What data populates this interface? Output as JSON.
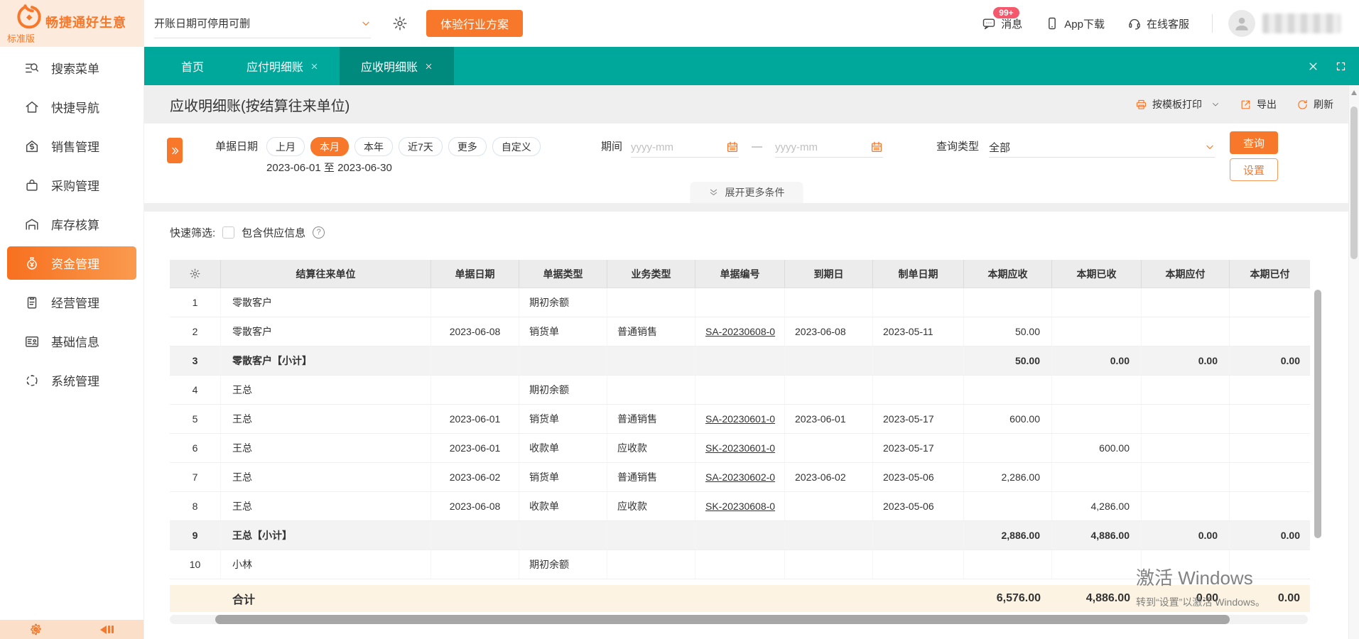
{
  "brand": {
    "name": "畅捷通好生意",
    "edition": "标准版"
  },
  "topbar": {
    "account_set": "开账日期可停用可删",
    "cta": "体验行业方案",
    "messages": "消息",
    "messages_badge": "99+",
    "app_download": "App下载",
    "online_service": "在线客服"
  },
  "tabs": [
    {
      "label": "首页"
    },
    {
      "label": "应付明细账"
    },
    {
      "label": "应收明细账"
    }
  ],
  "sidebar": {
    "items": [
      {
        "label": "搜索菜单"
      },
      {
        "label": "快捷导航"
      },
      {
        "label": "销售管理"
      },
      {
        "label": "采购管理"
      },
      {
        "label": "库存核算"
      },
      {
        "label": "资金管理",
        "active": true
      },
      {
        "label": "经营管理"
      },
      {
        "label": "基础信息"
      },
      {
        "label": "系统管理"
      }
    ]
  },
  "page": {
    "title": "应收明细账(按结算往来单位)",
    "print": "按模板打印",
    "export": "导出",
    "refresh": "刷新"
  },
  "filters": {
    "doc_date_label": "单据日期",
    "pills": [
      "上月",
      "本月",
      "本年",
      "近7天",
      "更多",
      "自定义"
    ],
    "active_pill": "本月",
    "date_range": "2023-06-01 至 2023-06-30",
    "period_label": "期间",
    "period_placeholder": "yyyy-mm",
    "separator": "—",
    "query_type_label": "查询类型",
    "query_type_value": "全部",
    "search": "查询",
    "settings": "设置",
    "expand_more": "展开更多条件"
  },
  "quick_filter": {
    "label": "快速筛选:",
    "option": "包含供应信息",
    "help": "?"
  },
  "table": {
    "headers": [
      "",
      "结算往来单位",
      "单据日期",
      "单据类型",
      "业务类型",
      "单据编号",
      "到期日",
      "制单日期",
      "本期应收",
      "本期已收",
      "本期应付",
      "本期已付"
    ],
    "rows": [
      {
        "num": "1",
        "name": "零散客户",
        "doc_date": "",
        "doc_type": "期初余额",
        "biz_type": "",
        "doc_no": "",
        "due_date": "",
        "make_date": "",
        "recv": "",
        "recvd": "",
        "pay": "",
        "paid": "",
        "subtotal": false
      },
      {
        "num": "2",
        "name": "零散客户",
        "doc_date": "2023-06-08",
        "doc_type": "销货单",
        "biz_type": "普通销售",
        "doc_no": "SA-20230608-0",
        "due_date": "2023-06-08",
        "make_date": "2023-05-11",
        "recv": "50.00",
        "recvd": "",
        "pay": "",
        "paid": "",
        "subtotal": false
      },
      {
        "num": "3",
        "name": "零散客户【小计】",
        "doc_date": "",
        "doc_type": "",
        "biz_type": "",
        "doc_no": "",
        "due_date": "",
        "make_date": "",
        "recv": "50.00",
        "recvd": "0.00",
        "pay": "0.00",
        "paid": "0.00",
        "subtotal": true
      },
      {
        "num": "4",
        "name": "王总",
        "doc_date": "",
        "doc_type": "期初余额",
        "biz_type": "",
        "doc_no": "",
        "due_date": "",
        "make_date": "",
        "recv": "",
        "recvd": "",
        "pay": "",
        "paid": "",
        "subtotal": false
      },
      {
        "num": "5",
        "name": "王总",
        "doc_date": "2023-06-01",
        "doc_type": "销货单",
        "biz_type": "普通销售",
        "doc_no": "SA-20230601-0",
        "due_date": "2023-06-01",
        "make_date": "2023-05-17",
        "recv": "600.00",
        "recvd": "",
        "pay": "",
        "paid": "",
        "subtotal": false
      },
      {
        "num": "6",
        "name": "王总",
        "doc_date": "2023-06-01",
        "doc_type": "收款单",
        "biz_type": "应收款",
        "doc_no": "SK-20230601-0",
        "due_date": "",
        "make_date": "2023-05-17",
        "recv": "",
        "recvd": "600.00",
        "pay": "",
        "paid": "",
        "subtotal": false
      },
      {
        "num": "7",
        "name": "王总",
        "doc_date": "2023-06-02",
        "doc_type": "销货单",
        "biz_type": "普通销售",
        "doc_no": "SA-20230602-0",
        "due_date": "2023-06-02",
        "make_date": "2023-05-06",
        "recv": "2,286.00",
        "recvd": "",
        "pay": "",
        "paid": "",
        "subtotal": false
      },
      {
        "num": "8",
        "name": "王总",
        "doc_date": "2023-06-08",
        "doc_type": "收款单",
        "biz_type": "应收款",
        "doc_no": "SK-20230608-0",
        "due_date": "",
        "make_date": "2023-05-06",
        "recv": "",
        "recvd": "4,286.00",
        "pay": "",
        "paid": "",
        "subtotal": false
      },
      {
        "num": "9",
        "name": "王总【小计】",
        "doc_date": "",
        "doc_type": "",
        "biz_type": "",
        "doc_no": "",
        "due_date": "",
        "make_date": "",
        "recv": "2,886.00",
        "recvd": "4,886.00",
        "pay": "0.00",
        "paid": "0.00",
        "subtotal": true
      },
      {
        "num": "10",
        "name": "小林",
        "doc_date": "",
        "doc_type": "期初余额",
        "biz_type": "",
        "doc_no": "",
        "due_date": "",
        "make_date": "",
        "recv": "",
        "recvd": "",
        "pay": "",
        "paid": "",
        "subtotal": false
      }
    ],
    "footer": {
      "label": "合计",
      "recv": "6,576.00",
      "recvd": "4,886.00",
      "pay": "0.00",
      "paid": "0.00"
    }
  },
  "watermark": {
    "line1": "激活 Windows",
    "line2": "转到“设置”以激活 Windows。"
  },
  "colors": {
    "teal": "#00A79B",
    "teal_dark": "#00897D",
    "orange": "#F7782A",
    "badge": "#F4586C"
  }
}
